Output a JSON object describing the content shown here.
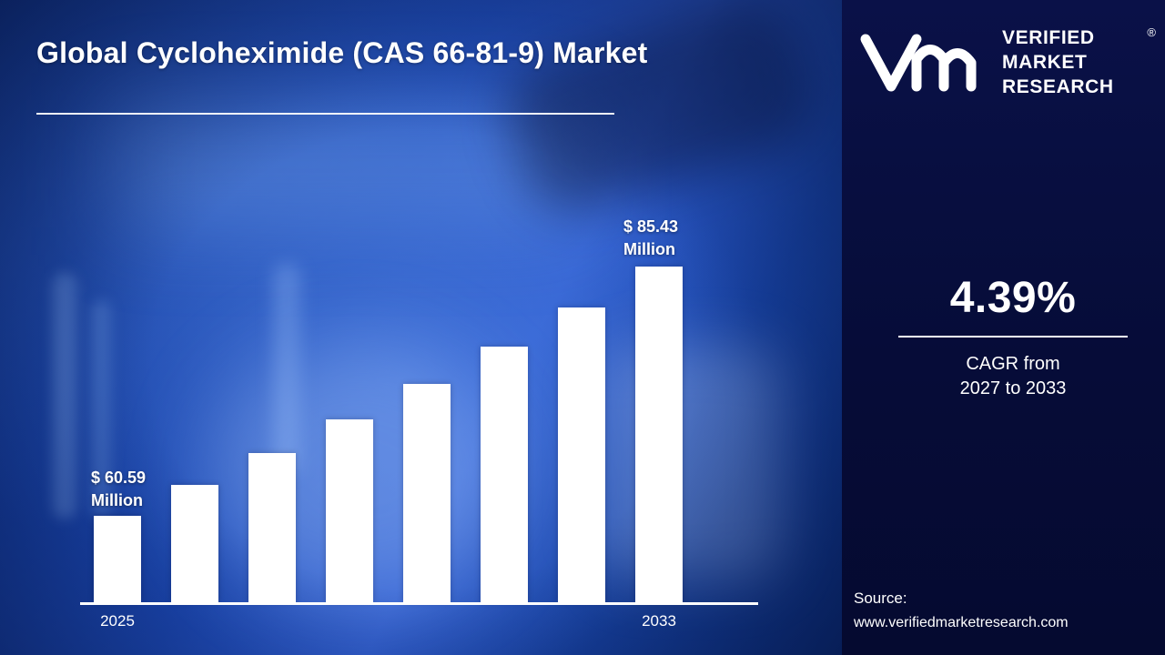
{
  "title": "Global Cycloheximide (CAS 66-81-9) Market",
  "chart_data": {
    "type": "bar",
    "title": "Global Cycloheximide (CAS 66-81-9) Market",
    "x_tick_labels": [
      "2025",
      "",
      "",
      "",
      "",
      "",
      "",
      "2033"
    ],
    "values": [
      60.59,
      63.64,
      66.84,
      70.2,
      73.73,
      77.44,
      81.34,
      85.43
    ],
    "unit": "USD Million",
    "first_bar_label": {
      "value": "$ 60.59",
      "unit": "Million"
    },
    "last_bar_label": {
      "value": "$ 85.43",
      "unit": "Million"
    },
    "ylim": [
      52,
      100
    ],
    "bar_color": "#ffffff",
    "grid": false,
    "legend": false,
    "xlabel": "",
    "ylabel": ""
  },
  "sidebar": {
    "brand": {
      "logo": "vmr-monogram",
      "name_lines": [
        "VERIFIED",
        "MARKET",
        "RESEARCH"
      ],
      "registered_mark": "®"
    },
    "cagr": {
      "value": "4.39%",
      "caption_line1": "CAGR from",
      "caption_line2": "2027 to 2033"
    },
    "source": {
      "label": "Source:",
      "url": "www.verifiedmarketresearch.com"
    }
  },
  "colors": {
    "main_bg": "#1c49b6",
    "sidebar_bg": "#060c38",
    "bar": "#ffffff",
    "text": "#ffffff"
  }
}
